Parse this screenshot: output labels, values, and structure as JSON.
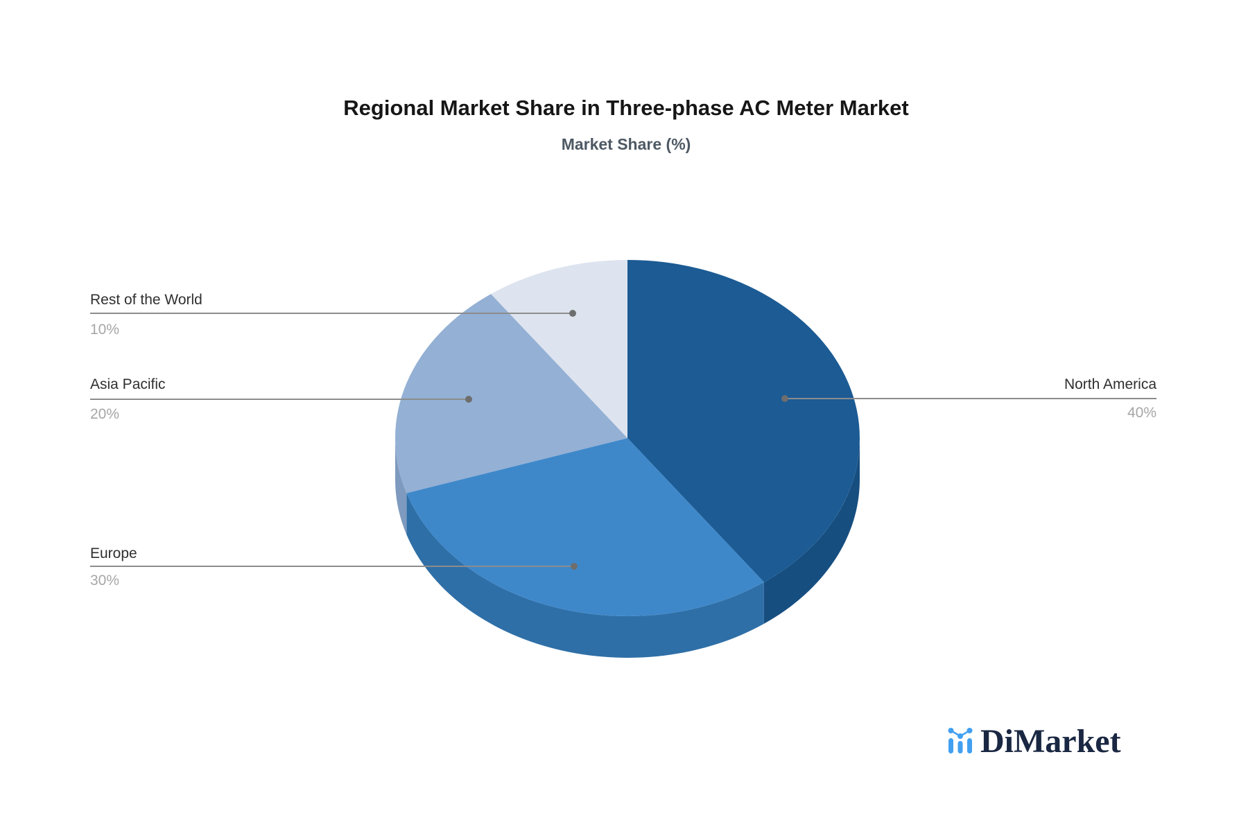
{
  "chart_data": {
    "type": "pie",
    "title": "Regional Market Share in Three-phase AC Meter Market",
    "subtitle": "Market Share (%)",
    "unit": "%",
    "direction": "clockwise",
    "start_angle_deg": 0,
    "style": "3d-pie",
    "legend_position": "callout-leader-lines",
    "slices": [
      {
        "label": "North America",
        "value": 40,
        "display": "40%",
        "color": "#1C5B94",
        "side_color": "#174E80"
      },
      {
        "label": "Europe",
        "value": 30,
        "display": "30%",
        "color": "#3E88CA",
        "side_color": "#2F6FA7"
      },
      {
        "label": "Asia Pacific",
        "value": 20,
        "display": "20%",
        "color": "#94B0D4",
        "side_color": "#7E9ABE"
      },
      {
        "label": "Rest of the World",
        "value": 10,
        "display": "10%",
        "color": "#DDE4EF",
        "side_color": "#C9D2E0"
      }
    ],
    "callout": {
      "line_color": "#8C8C8C",
      "dot_color": "#6E6E6E",
      "name_color": "#2F2F2F",
      "value_color": "#A6A6A6"
    }
  },
  "branding": {
    "name": "DiMarket",
    "icon": "bar-line-chart-icon",
    "icon_color": "#42A0F0",
    "text_color": "#1A2742"
  }
}
